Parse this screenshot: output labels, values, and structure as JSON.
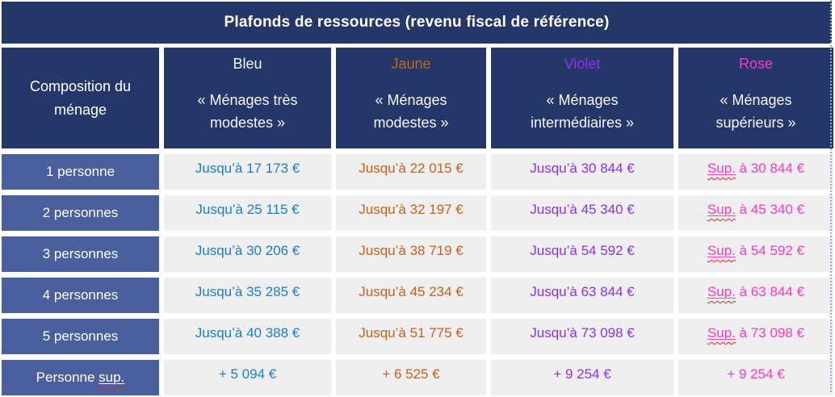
{
  "title": "Plafonds de ressources (revenu fiscal de référence)",
  "colors": {
    "header_navy": "#253768",
    "row_label_blue": "#4a5f9e",
    "cell_background": "#efefef",
    "bleu_text": "#1b7ecb",
    "jaune_text": "#c8601a",
    "violet_text": "#8b32ee",
    "rose_text": "#ff38c3",
    "spellcheck_red": "#e02b20",
    "dashed_gridline": "#8faadc"
  },
  "table": {
    "corner_header": "Composition du ménage",
    "columns": [
      {
        "id": "bleu",
        "name": "Bleu",
        "subtitle": "« Ménages très modestes »",
        "name_color": "#f2f2f7",
        "value_color": "#1b7ecb"
      },
      {
        "id": "jaune",
        "name": "Jaune",
        "subtitle": "« Ménages modestes »",
        "name_color": "#c8601a",
        "value_color": "#c8601a"
      },
      {
        "id": "violet",
        "name": "Violet",
        "subtitle": "« Ménages intermédiaires »",
        "name_color": "#8b32ee",
        "value_color": "#8b32ee"
      },
      {
        "id": "rose",
        "name": "Rose",
        "subtitle": "« Ménages supérieurs »",
        "name_color": "#ff33cc",
        "value_color": "#ff38c3"
      }
    ],
    "rows": [
      {
        "label": "1 personne",
        "bleu": "Jusqu’à 17 173 €",
        "jaune": "Jusqu’à 22 015 €",
        "violet": "Jusqu’à 30 844 €",
        "rose": {
          "sup": "Sup.",
          "rest": " à 30 844 €"
        }
      },
      {
        "label": "2 personnes",
        "bleu": "Jusqu’à 25 115 €",
        "jaune": "Jusqu’à 32 197 €",
        "violet": "Jusqu’à 45 340 €",
        "rose": {
          "sup": "Sup.",
          "rest": " à 45 340 €"
        }
      },
      {
        "label": "3 personnes",
        "bleu": "Jusqu’à 30 206 €",
        "jaune": "Jusqu’à 38 719 €",
        "violet": "Jusqu’à 54 592 €",
        "rose": {
          "sup": "Sup.",
          "rest": " à 54 592 €"
        }
      },
      {
        "label": "4 personnes",
        "bleu": "Jusqu’à 35 285 €",
        "jaune": "Jusqu’à 45 234 €",
        "violet": "Jusqu’à 63 844 €",
        "rose": {
          "sup": "Sup.",
          "rest": " à 63 844 €"
        }
      },
      {
        "label": "5 personnes",
        "bleu": "Jusqu’à 40 388 €",
        "jaune": "Jusqu’à 51 775 €",
        "violet": "Jusqu’à 73 098 €",
        "rose": {
          "sup": "Sup.",
          "rest": " à 73 098 €"
        }
      },
      {
        "label_plain": "Personne ",
        "label_sup": "sup.",
        "bleu": "+ 5 094 €",
        "jaune": "+ 6 525 €",
        "violet": "+ 9 254 €",
        "rose_plain": "+ 9 254 €"
      }
    ]
  }
}
